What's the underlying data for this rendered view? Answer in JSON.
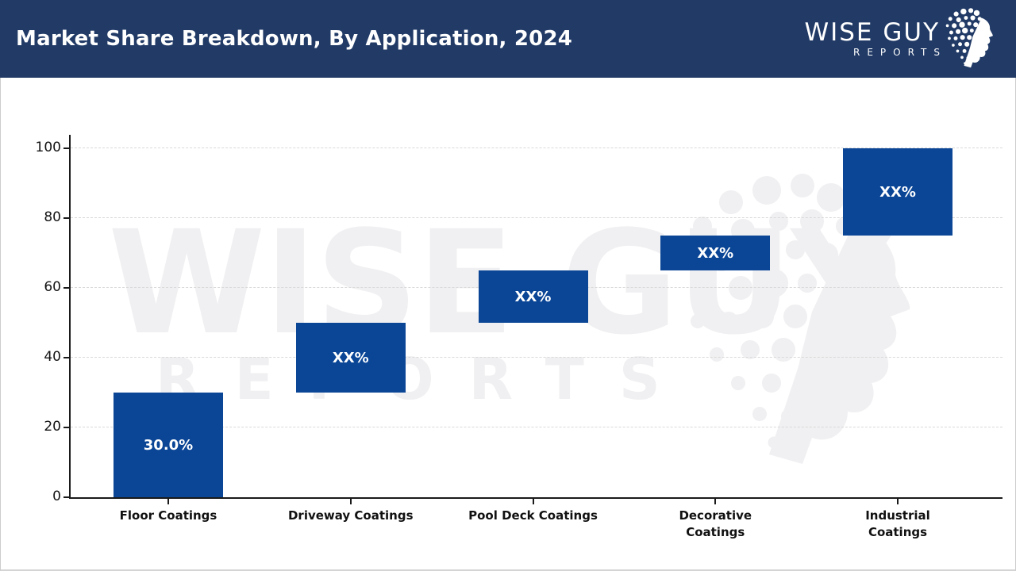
{
  "header": {
    "title": "Market Share Breakdown, By Application, 2024",
    "logo": {
      "wordmark": "WISE GUY",
      "sub": "REPORTS"
    }
  },
  "watermark": {
    "line1": "WISE GUY",
    "line2": "REPORTS"
  },
  "colors": {
    "header_bg": "#213a66",
    "bar": "#0a4596",
    "bar_label": "#ffffff",
    "axis": "#1a1a1a",
    "grid": "#d9d9d9",
    "watermark": "#f0f0f2"
  },
  "chart_data": {
    "type": "bar",
    "subtype": "waterfall-breakdown",
    "title": "Market Share Breakdown, By Application, 2024",
    "categories": [
      "Floor Coatings",
      "Driveway Coatings",
      "Pool Deck Coatings",
      "Decorative Coatings",
      "Industrial Coatings"
    ],
    "category_label_lines": [
      [
        "Floor Coatings"
      ],
      [
        "Driveway Coatings"
      ],
      [
        "Pool Deck Coatings"
      ],
      [
        "Decorative",
        "Coatings"
      ],
      [
        "Industrial",
        "Coatings"
      ]
    ],
    "segments": [
      {
        "category": "Floor Coatings",
        "start": 0,
        "end": 30,
        "value_shown": "30.0%",
        "value_est": 30
      },
      {
        "category": "Driveway Coatings",
        "start": 30,
        "end": 50,
        "value_shown": "XX%",
        "value_est": 20
      },
      {
        "category": "Pool Deck Coatings",
        "start": 50,
        "end": 65,
        "value_shown": "XX%",
        "value_est": 15
      },
      {
        "category": "Decorative Coatings",
        "start": 65,
        "end": 75,
        "value_shown": "XX%",
        "value_est": 10
      },
      {
        "category": "Industrial Coatings",
        "start": 75,
        "end": 100,
        "value_shown": "XX%",
        "value_est": 25
      }
    ],
    "ylim": [
      0,
      100
    ],
    "yticks": [
      0,
      20,
      40,
      60,
      80,
      100
    ],
    "xlabel": "",
    "ylabel": "",
    "grid": "horizontal-dashed",
    "legend": "none"
  }
}
